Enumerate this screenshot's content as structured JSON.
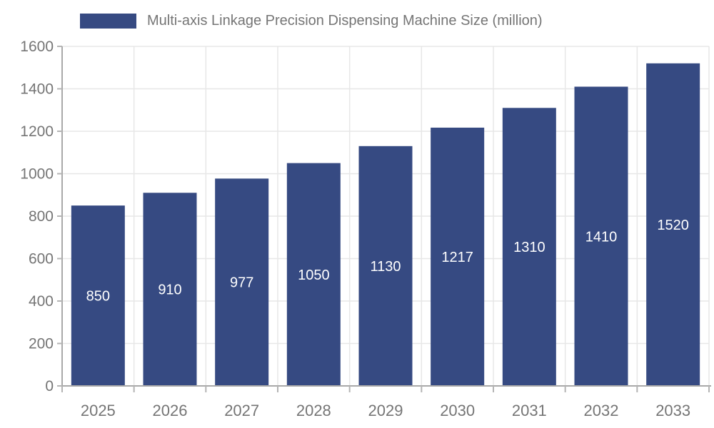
{
  "legend": {
    "label": "Multi-axis Linkage Precision Dispensing Machine Size (million)"
  },
  "chart_data": {
    "type": "bar",
    "title": "",
    "xlabel": "",
    "ylabel": "",
    "series_name": "Multi-axis Linkage Precision Dispensing Machine Size (million)",
    "categories": [
      "2025",
      "2026",
      "2027",
      "2028",
      "2029",
      "2030",
      "2031",
      "2032",
      "2033"
    ],
    "values": [
      850,
      910,
      977,
      1050,
      1130,
      1217,
      1310,
      1410,
      1520
    ],
    "bar_labels": [
      "850",
      "910",
      "977",
      "1050",
      "1130",
      "1217",
      "1310",
      "1410",
      "1520"
    ],
    "ylim": [
      0,
      1600
    ],
    "ytick_step": 200,
    "yticks": [
      0,
      200,
      400,
      600,
      800,
      1000,
      1200,
      1400,
      1600
    ],
    "grid": true,
    "legend_position": "top-left",
    "colors": {
      "bar": "#364A82",
      "grid_line": "#e7e7e7",
      "axis_line": "#a9a9a9",
      "tick_mark": "#b4b4b4",
      "tick_label": "#757575",
      "legend_text": "#757575",
      "bar_label": "#ffffff",
      "background": "#ffffff"
    }
  }
}
